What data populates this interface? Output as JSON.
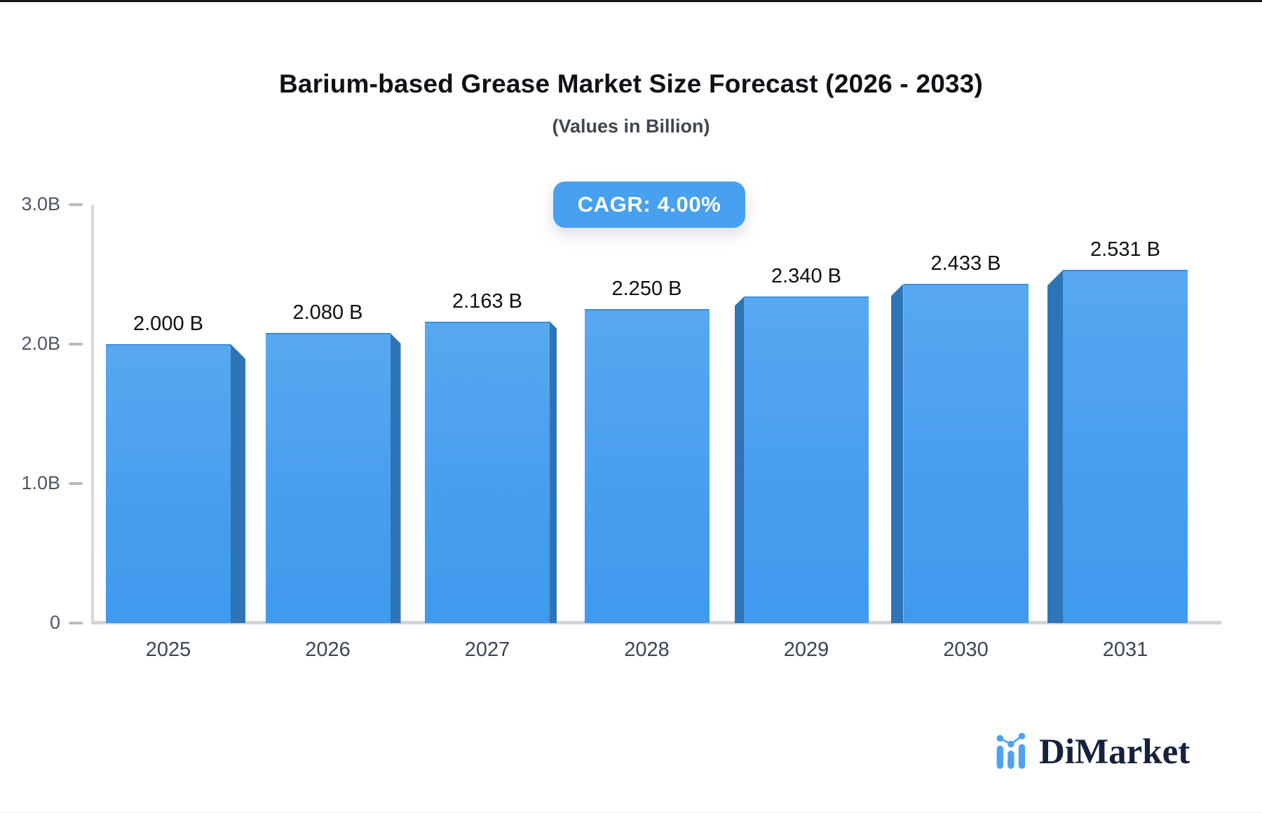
{
  "page": {
    "title": "Barium-based Grease Market Size Forecast (2026 - 2033)",
    "subtitle": "(Values in Billion)",
    "cagr_label": "CAGR: 4.00%"
  },
  "brand": {
    "name": "DiMarket"
  },
  "colors": {
    "bar_face_top": "#58a8f1",
    "bar_face_bottom": "#3f99ed",
    "bar_side": "#2e75b7",
    "badge_bg": "#47a0f0",
    "badge_text": "#ffffff",
    "axis_line": "#d6d8dc",
    "tick_dash": "#b8bcc2",
    "y_tick_text": "#4d5565",
    "x_tick_text": "#3c4554",
    "value_text": "#0d0f12",
    "brand_text": "#16213e",
    "brand_blue": "#4ca2f5"
  },
  "chart_data": {
    "type": "bar",
    "title": "Barium-based Grease Market Size Forecast (2026 - 2033)",
    "subtitle": "(Values in Billion)",
    "annotation": "CAGR: 4.00%",
    "unit": "Billion",
    "categories": [
      "2025",
      "2026",
      "2027",
      "2028",
      "2029",
      "2030",
      "2031"
    ],
    "values": [
      2.0,
      2.08,
      2.163,
      2.25,
      2.34,
      2.433,
      2.531
    ],
    "value_labels": [
      "2.000 B",
      "2.080 B",
      "2.163 B",
      "2.250 B",
      "2.340 B",
      "2.433 B",
      "2.531 B"
    ],
    "ylim": [
      0,
      3
    ],
    "y_ticks": [
      {
        "value": 3,
        "label": "3.0B"
      },
      {
        "value": 2,
        "label": "2.0B"
      },
      {
        "value": 1,
        "label": "1.0B"
      },
      {
        "value": 0,
        "label": "0"
      }
    ],
    "grid": false,
    "legend": false,
    "style": "3d-perspective-bars"
  }
}
